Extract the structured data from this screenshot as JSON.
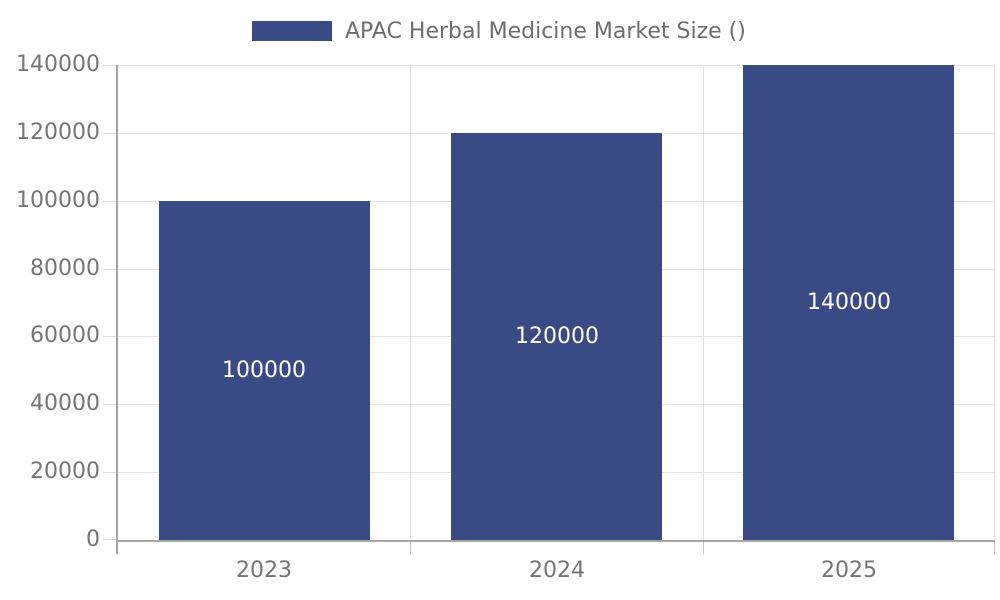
{
  "chart_data": {
    "type": "bar",
    "title": "APAC Herbal Medicine Market Size ()",
    "categories": [
      "2023",
      "2024",
      "2025"
    ],
    "values": [
      100000,
      120000,
      140000
    ],
    "bar_labels": [
      "100000",
      "120000",
      "140000"
    ],
    "xlabel": "",
    "ylabel": "",
    "ylim": [
      0,
      140000
    ],
    "y_ticks": [
      0,
      20000,
      40000,
      60000,
      80000,
      100000,
      120000,
      140000
    ],
    "grid": true,
    "legend": {
      "position": "top",
      "entries": [
        "APAC Herbal Medicine Market Size ()"
      ]
    },
    "colors": {
      "bar": "#394A84",
      "bar_label_text": "#FFFFFF",
      "axis_line": "#A6A6A6",
      "gridline": "#E3E3E3",
      "y_tick_mark": "#DCDCDC",
      "x_tick_mark": "#C4C4C4",
      "tick_text": "#757575",
      "legend_text": "#6E6E6E",
      "background": "#FFFFFF"
    }
  }
}
